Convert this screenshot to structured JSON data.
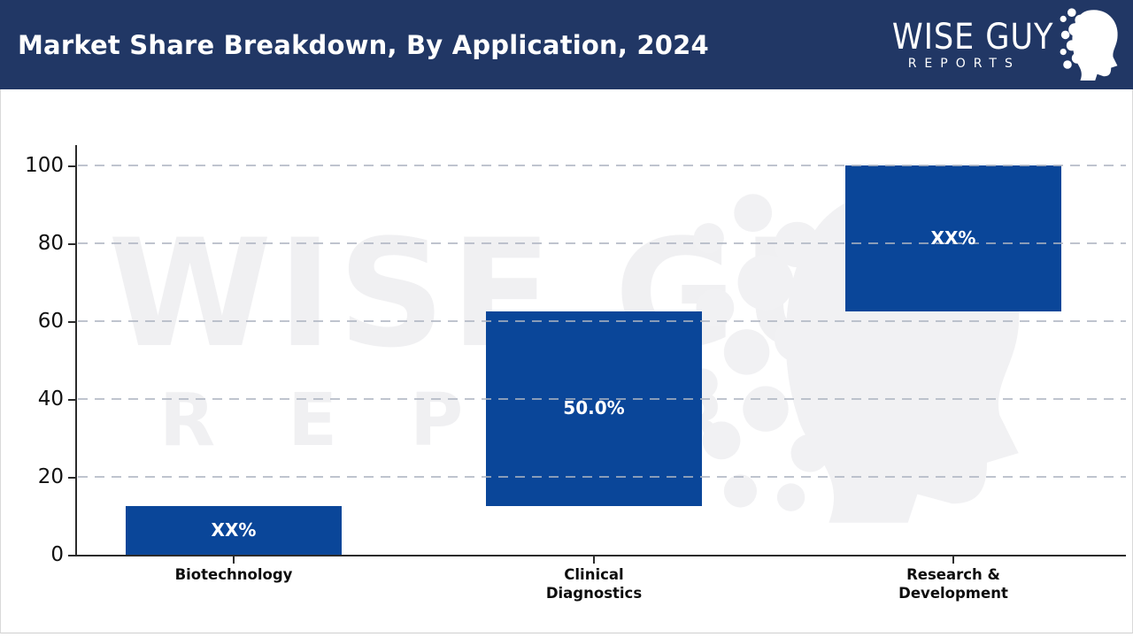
{
  "header": {
    "title": "Market Share Breakdown, By Application, 2024",
    "logo": {
      "line1": "WISE GUY",
      "line2": "REPORTS"
    }
  },
  "watermark": {
    "line1": "WISE GUY",
    "line2": "REPORTS"
  },
  "colors": {
    "header_bg": "#213765",
    "bar": "#0a4699",
    "axis": "#2b2b2b",
    "grid_dash": "#cdd2da",
    "tick_text": "#111111",
    "bar_label_text": "#ffffff",
    "watermark": "#f0f0f2",
    "card_border": "#d9d9d9",
    "background": "#ffffff"
  },
  "chart_data": {
    "type": "bar",
    "variant": "floating-segmented-waterfall",
    "title": "Market Share Breakdown, By Application, 2024",
    "categories": [
      "Biotechnology",
      "Clinical Diagnostics",
      "Research & Development"
    ],
    "axis_labels": [
      "Biotechnology",
      "Clinical\nDiagnostics",
      "Research &\nDevelopment"
    ],
    "segments": [
      {
        "category": "Biotechnology",
        "from": 0,
        "to": 12.5,
        "label": "XX%"
      },
      {
        "category": "Clinical Diagnostics",
        "from": 12.5,
        "to": 62.5,
        "label": "50.0%"
      },
      {
        "category": "Research & Development",
        "from": 62.5,
        "to": 100,
        "label": "XX%"
      }
    ],
    "yticks": [
      0,
      20,
      40,
      60,
      80,
      100
    ],
    "ylim": [
      0,
      105
    ],
    "xlabel": "",
    "ylabel": "",
    "grid": "horizontal dashed gridlines drawn over bars",
    "legend": "none",
    "bar_color": "#0a4699"
  }
}
